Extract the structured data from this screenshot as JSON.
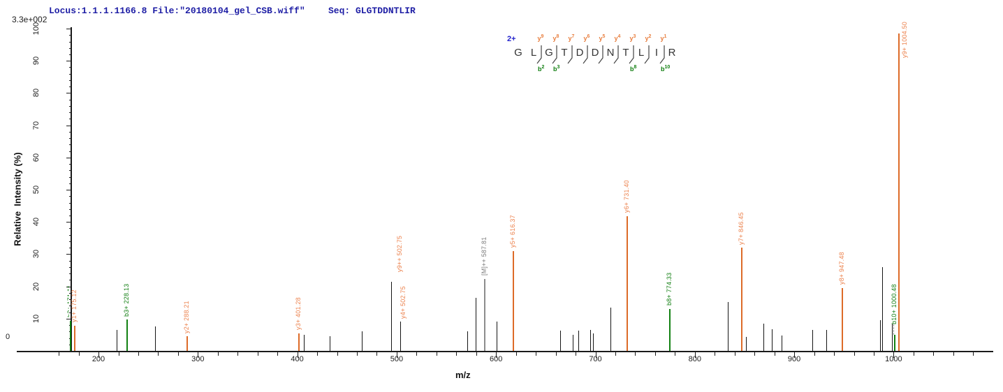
{
  "header": {
    "locus_file": "Locus:1.1.1.1166.8 File:\"20180104_gel_CSB.wiff\"",
    "seq_label": "Seq: GLGTDDNTLIR",
    "base_intensity": "3.3e+002"
  },
  "peptide": {
    "charge": "2+",
    "residues": [
      "G",
      "L",
      "G",
      "T",
      "D",
      "D",
      "N",
      "T",
      "L",
      "I",
      "R"
    ],
    "cleavages": [
      {
        "after": 2,
        "y": "y9",
        "b": "b2"
      },
      {
        "after": 3,
        "y": "y8",
        "b": "b3"
      },
      {
        "after": 4,
        "y": "y7",
        "b": null
      },
      {
        "after": 5,
        "y": "y6",
        "b": null
      },
      {
        "after": 6,
        "y": "y5",
        "b": null
      },
      {
        "after": 7,
        "y": "y4",
        "b": null
      },
      {
        "after": 8,
        "y": "y3",
        "b": "b8"
      },
      {
        "after": 9,
        "y": "y2",
        "b": null
      },
      {
        "after": 10,
        "y": "y1",
        "b": "b10"
      }
    ]
  },
  "chart_data": {
    "type": "bar",
    "subtype": "ms2-stick-spectrum",
    "xlabel": "m/z",
    "ylabel": "Relative  Intensity (%)",
    "xlim": [
      160,
      1100
    ],
    "ylim": [
      0,
      100
    ],
    "x_major_ticks": [
      200,
      300,
      400,
      500,
      600,
      700,
      800,
      900,
      1000
    ],
    "x_minor_step": 20,
    "y_major_ticks": [
      0,
      10,
      20,
      30,
      40,
      50,
      60,
      70,
      80,
      90,
      100
    ],
    "y_minor_step": 2,
    "grid": false,
    "legend": "none",
    "colors": {
      "unassigned": "#141414",
      "y": "#DD6B28",
      "y_label": "#EC824D",
      "b": "#128112",
      "b_label": "#0F7D0F",
      "M": "#8C8C8C",
      "M_label": "#7a7a7a"
    },
    "peaks": [
      {
        "mz": 171.11,
        "pct": 9.3,
        "ion": "b",
        "label": "b2+ 171.11",
        "clip": 4
      },
      {
        "mz": 175.12,
        "pct": 7.8,
        "ion": "y",
        "label": "y1+ 175.12"
      },
      {
        "mz": 218.3,
        "pct": 6.5,
        "ion": "",
        "label": null
      },
      {
        "mz": 228.13,
        "pct": 9.7,
        "ion": "b",
        "label": "b3+ 228.13"
      },
      {
        "mz": 257.0,
        "pct": 7.5,
        "ion": "",
        "label": null
      },
      {
        "mz": 288.21,
        "pct": 4.5,
        "ion": "y",
        "label": "y2+ 288.21"
      },
      {
        "mz": 401.28,
        "pct": 5.5,
        "ion": "y",
        "label": "y3+ 401.28"
      },
      {
        "mz": 406.5,
        "pct": 5.0,
        "ion": "",
        "label": null
      },
      {
        "mz": 432.5,
        "pct": 4.5,
        "ion": "",
        "label": null
      },
      {
        "mz": 465.0,
        "pct": 6.0,
        "ion": "",
        "label": null
      },
      {
        "mz": 494.4,
        "pct": 21.5,
        "ion": "",
        "label": null
      },
      {
        "mz": 503.7,
        "pct": 9.0,
        "ion": "",
        "label": null
      },
      {
        "mz": 503.0,
        "pct": 0,
        "ion": "y",
        "label": "y9++ 502.75",
        "line": false,
        "label_pct": 24.5
      },
      {
        "mz": 506.5,
        "pct": 0,
        "ion": "y",
        "label": "y4+ 502.75",
        "line": false,
        "label_pct": 10
      },
      {
        "mz": 571.0,
        "pct": 6.0,
        "ion": "",
        "label": null
      },
      {
        "mz": 579.5,
        "pct": 16.5,
        "ion": "",
        "label": null
      },
      {
        "mz": 587.81,
        "pct": 22.3,
        "ion": "M",
        "label": "[M]++ 587.81"
      },
      {
        "mz": 600.5,
        "pct": 9.0,
        "ion": "",
        "label": null
      },
      {
        "mz": 616.8,
        "pct": 6.0,
        "ion": "",
        "label": null
      },
      {
        "mz": 616.37,
        "pct": 31.0,
        "ion": "y",
        "label": "y5+ 616.37"
      },
      {
        "mz": 664.5,
        "pct": 6.3,
        "ion": "",
        "label": null
      },
      {
        "mz": 677.0,
        "pct": 5.0,
        "ion": "",
        "label": null
      },
      {
        "mz": 683.0,
        "pct": 6.3,
        "ion": "",
        "label": null
      },
      {
        "mz": 695.0,
        "pct": 6.5,
        "ion": "",
        "label": null
      },
      {
        "mz": 697.5,
        "pct": 5.5,
        "ion": "",
        "label": null
      },
      {
        "mz": 715.0,
        "pct": 13.5,
        "ion": "",
        "label": null
      },
      {
        "mz": 731.8,
        "pct": 6.0,
        "ion": "",
        "label": null
      },
      {
        "mz": 731.4,
        "pct": 41.8,
        "ion": "y",
        "label": "y6+ 731.40"
      },
      {
        "mz": 774.33,
        "pct": 13.0,
        "ion": "b",
        "label": "b8+ 774.33"
      },
      {
        "mz": 833.0,
        "pct": 15.2,
        "ion": "",
        "label": null
      },
      {
        "mz": 847.0,
        "pct": 17.0,
        "ion": "",
        "label": null
      },
      {
        "mz": 846.45,
        "pct": 32.0,
        "ion": "y",
        "label": "y7+ 846.45"
      },
      {
        "mz": 851.5,
        "pct": 4.3,
        "ion": "",
        "label": null
      },
      {
        "mz": 869.0,
        "pct": 8.4,
        "ion": "",
        "label": null
      },
      {
        "mz": 877.5,
        "pct": 6.7,
        "ion": "",
        "label": null
      },
      {
        "mz": 887.0,
        "pct": 4.8,
        "ion": "",
        "label": null
      },
      {
        "mz": 918.0,
        "pct": 6.5,
        "ion": "",
        "label": null
      },
      {
        "mz": 932.0,
        "pct": 6.5,
        "ion": "",
        "label": null
      },
      {
        "mz": 947.48,
        "pct": 19.5,
        "ion": "y",
        "label": "y8+ 947.48"
      },
      {
        "mz": 986.0,
        "pct": 9.5,
        "ion": "",
        "label": null
      },
      {
        "mz": 988.5,
        "pct": 26.0,
        "ion": "",
        "label": null
      },
      {
        "mz": 998.0,
        "pct": 8.4,
        "ion": "",
        "label": null
      },
      {
        "mz": 1000.48,
        "pct": 5.0,
        "ion": "b",
        "label": "b10+ 1000.48",
        "label_pct": 8.2,
        "leader": true
      },
      {
        "mz": 1004.5,
        "pct": 98.5,
        "ion": "y",
        "label": "y9+ 1004.50",
        "label_pct": 91,
        "dx": 4
      }
    ]
  }
}
